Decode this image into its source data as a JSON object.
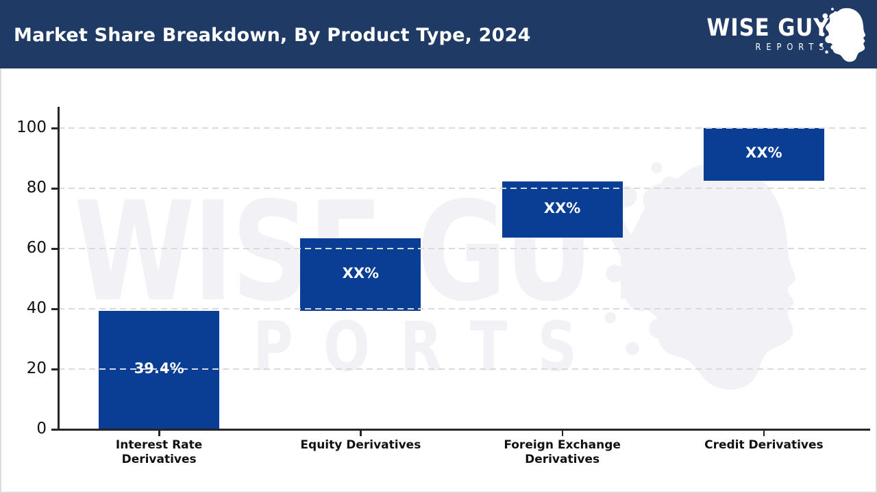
{
  "header": {
    "title": "Market Share Breakdown, By Product Type, 2024",
    "logo": {
      "brand": "WISE GUY",
      "sub": "REPORTS"
    }
  },
  "watermark": {
    "brand": "WISE GUY",
    "sub": "REPORTS"
  },
  "chart_data": {
    "type": "bar",
    "subtype": "waterfall (floating stacked market-share bars)",
    "title": "Market Share Breakdown, By Product Type, 2024",
    "categories": [
      "Interest Rate Derivatives",
      "Equity Derivatives",
      "Foreign Exchange Derivatives",
      "Credit Derivatives"
    ],
    "series": [
      {
        "name": "Interest Rate Derivatives",
        "start": 0,
        "end": 39.4,
        "label": "39.4%"
      },
      {
        "name": "Equity Derivatives",
        "start": 39.4,
        "end": 63.4,
        "label": "XX%"
      },
      {
        "name": "Foreign Exchange Derivatives",
        "start": 63.6,
        "end": 82.3,
        "label": "XX%"
      },
      {
        "name": "Credit Derivatives",
        "start": 82.6,
        "end": 100,
        "label": "XX%"
      }
    ],
    "xlabel": "",
    "ylabel": "",
    "ylim": [
      0,
      105
    ],
    "yticks": [
      0,
      20,
      40,
      60,
      80,
      100
    ],
    "grid": "horizontal dashed gridlines",
    "legend": "none",
    "bar_color": "#0a3e94",
    "bar_label_color": "#ffffff"
  },
  "colors": {
    "header_bg": "#1f3a64",
    "bar": "#0a3e94",
    "axis": "#262626",
    "grid": "#d9d9df",
    "watermark": "#f2f2f6",
    "frame": "#dcdcdf"
  }
}
